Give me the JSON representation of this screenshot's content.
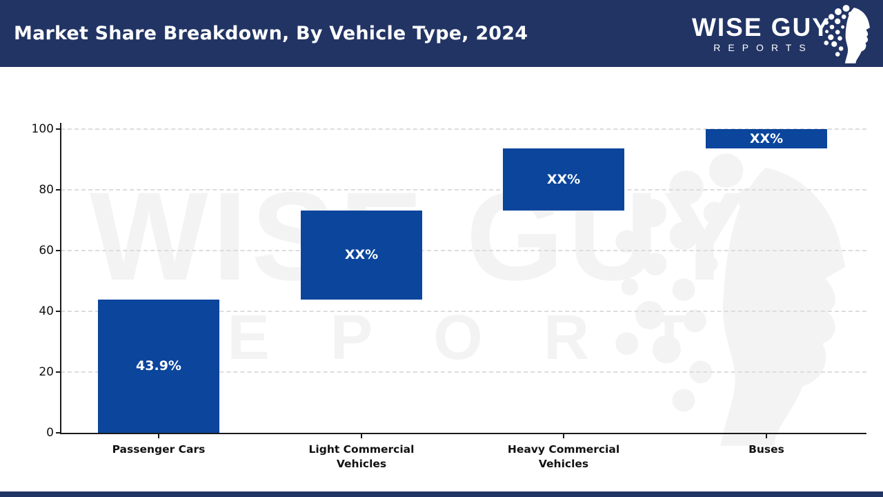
{
  "header": {
    "title": "Market Share Breakdown, By Vehicle Type, 2024",
    "logo": {
      "wordmark": "WISE GUY",
      "subtext": "REPORTS"
    }
  },
  "watermark": {
    "line1": "WISE GUY",
    "line2": "REPORTS"
  },
  "colors": {
    "header_navy": "#213464",
    "header_text": "#ffffff",
    "bar_blue": "#0b459c",
    "bar_label_white": "#ffffff",
    "grid_gray": "#dcdcdc",
    "axis_black": "#1a1a1a",
    "watermark_gray": "#f3f3f3"
  },
  "chart_data": {
    "type": "bar",
    "subtype": "waterfall-cumulative",
    "title": "Market Share Breakdown, By Vehicle Type, 2024",
    "xlabel": "",
    "ylabel": "",
    "ylim": [
      0,
      102
    ],
    "y_ticks": [
      0,
      20,
      40,
      60,
      80,
      100
    ],
    "grid": "horizontal-dashed",
    "legend": "none",
    "categories": [
      "Passenger Cars",
      "Light Commercial Vehicles",
      "Heavy Commercial Vehicles",
      "Buses"
    ],
    "bars": [
      {
        "category": "Passenger Cars",
        "category_lines": [
          "Passenger Cars"
        ],
        "start": 0,
        "end": 43.9,
        "value": 43.9,
        "label": "43.9%"
      },
      {
        "category": "Light Commercial Vehicles",
        "category_lines": [
          "Light Commercial",
          "Vehicles"
        ],
        "start": 43.9,
        "end": 73.2,
        "value": 29.3,
        "label": "XX%"
      },
      {
        "category": "Heavy Commercial Vehicles",
        "category_lines": [
          "Heavy Commercial",
          "Vehicles"
        ],
        "start": 73.2,
        "end": 93.6,
        "value": 20.4,
        "label": "XX%"
      },
      {
        "category": "Buses",
        "category_lines": [
          "Buses"
        ],
        "start": 93.6,
        "end": 100,
        "value": 6.4,
        "label": "XX%"
      }
    ],
    "bar_color": "#0b459c",
    "value_label_color": "#ffffff"
  }
}
